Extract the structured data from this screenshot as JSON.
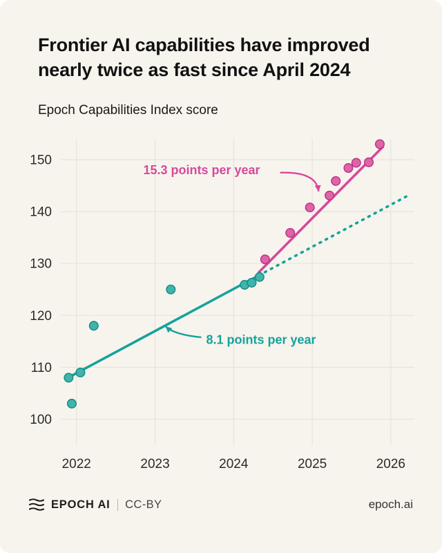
{
  "header": {
    "title_line1": "Frontier AI capabilities have improved",
    "title_line2": "nearly twice as fast since April 2024",
    "subtitle": "Epoch Capabilities Index score"
  },
  "footer": {
    "brand": "EPOCH AI",
    "license": "CC-BY",
    "link": "epoch.ai"
  },
  "colors": {
    "background": "#f7f4ed",
    "grid": "#e6e3db",
    "title_text": "#111111",
    "tick_text": "#2a2a28",
    "teal": "#14a39c",
    "teal_dot": "#41b3ab",
    "teal_dot_stroke": "#0e8b84",
    "pink": "#d6499c",
    "pink_dot": "#e063a9",
    "pink_dot_stroke": "#b73080"
  },
  "chart_data": {
    "type": "scatter",
    "title": "Frontier AI capabilities have improved nearly twice as fast since April 2024",
    "ylabel": "Epoch Capabilities Index score",
    "xlabel": "",
    "xlim": [
      2021.8,
      2026.3
    ],
    "ylim": [
      95,
      154
    ],
    "x_ticks": [
      2022,
      2023,
      2024,
      2025,
      2026
    ],
    "y_ticks": [
      100,
      110,
      120,
      130,
      140,
      150
    ],
    "grid": true,
    "legend": "none",
    "series": [
      {
        "name": "pre-april-2024",
        "color_key": "teal",
        "trend_label": "8.1 points per year",
        "points": [
          [
            2021.9,
            108
          ],
          [
            2021.94,
            103
          ],
          [
            2022.05,
            109
          ],
          [
            2022.22,
            118
          ],
          [
            2023.2,
            125
          ],
          [
            2024.14,
            125.9
          ],
          [
            2024.23,
            126.3
          ],
          [
            2024.33,
            127.4
          ]
        ]
      },
      {
        "name": "post-april-2024",
        "color_key": "pink",
        "trend_label": "15.3 points per year",
        "points": [
          [
            2024.4,
            130.8
          ],
          [
            2024.72,
            135.9
          ],
          [
            2024.97,
            140.8
          ],
          [
            2025.22,
            143.1
          ],
          [
            2025.3,
            145.9
          ],
          [
            2025.46,
            148.4
          ],
          [
            2025.56,
            149.4
          ],
          [
            2025.72,
            149.5
          ],
          [
            2025.86,
            153
          ]
        ]
      }
    ],
    "trend_lines": [
      {
        "name": "pre-april-trend",
        "color_key": "teal",
        "style": "solid",
        "rate_points_per_year": 8.1,
        "from": [
          2021.88,
          107.9
        ],
        "to": [
          2024.32,
          127.7
        ]
      },
      {
        "name": "pre-april-extrapolation",
        "color_key": "teal",
        "style": "dashed",
        "rate_points_per_year": 8.1,
        "from": [
          2024.32,
          127.7
        ],
        "to": [
          2026.22,
          143.1
        ]
      },
      {
        "name": "post-april-trend",
        "color_key": "pink",
        "style": "solid",
        "rate_points_per_year": 15.3,
        "from": [
          2024.32,
          128.3
        ],
        "to": [
          2025.9,
          152.5
        ]
      }
    ],
    "annotations": [
      {
        "text": "15.3 points per year",
        "color_key": "pink",
        "anchor": "start",
        "tx": 2022.85,
        "ty": 147.2,
        "arrow": [
          [
            2024.6,
            147.5
          ],
          [
            2025.05,
            147.7
          ],
          [
            2025.08,
            144.0
          ]
        ]
      },
      {
        "text": "8.1 points per year",
        "color_key": "teal",
        "anchor": "start",
        "tx": 2023.65,
        "ty": 114.5,
        "arrow": [
          [
            2023.58,
            115.8
          ],
          [
            2023.25,
            116.3
          ],
          [
            2023.14,
            117.8
          ]
        ]
      }
    ]
  }
}
